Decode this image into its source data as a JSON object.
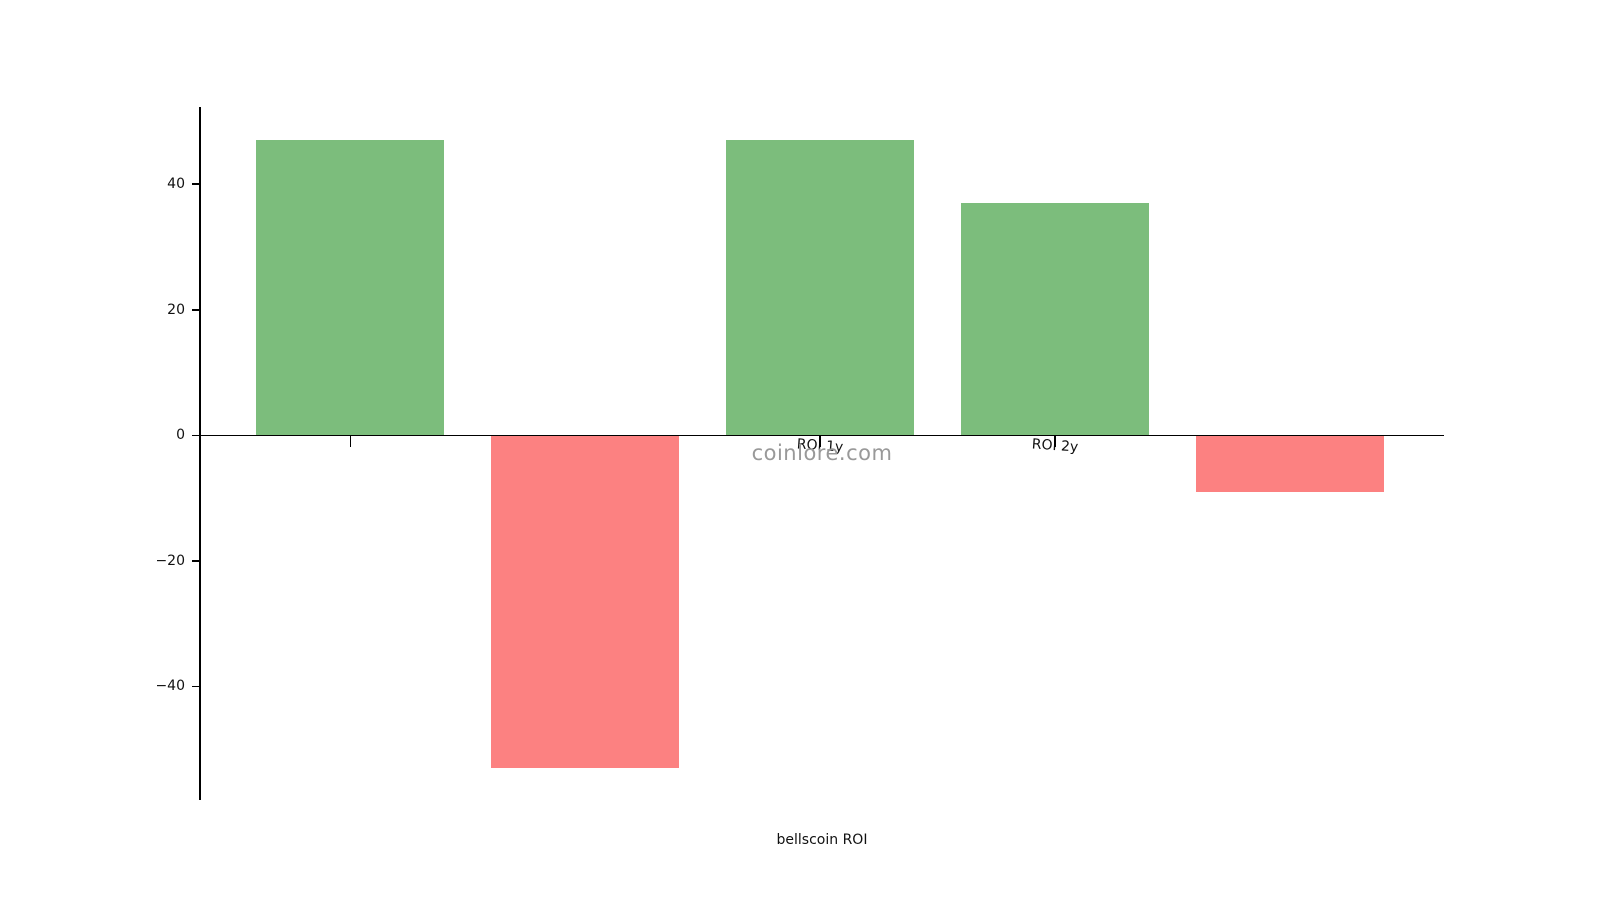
{
  "watermark": {
    "text": "coinlore.com",
    "color": "#999999"
  },
  "chart_data": {
    "type": "bar",
    "title": "",
    "xlabel": "bellscoin ROI",
    "ylabel": "",
    "categories": [
      "",
      "",
      "ROI 1y",
      "ROI 2y",
      ""
    ],
    "values": [
      47,
      -53,
      47,
      37,
      -9
    ],
    "yticks": [
      40,
      20,
      0,
      -20,
      -40
    ],
    "ylim": [
      -58.1,
      52.3
    ],
    "grid": false,
    "legend": "none",
    "positive_color": "#7cbd7c",
    "negative_color": "#fc8181",
    "axis_color": "#000000",
    "text_color": "#111111",
    "x_tick_rotation_deg": 4
  }
}
